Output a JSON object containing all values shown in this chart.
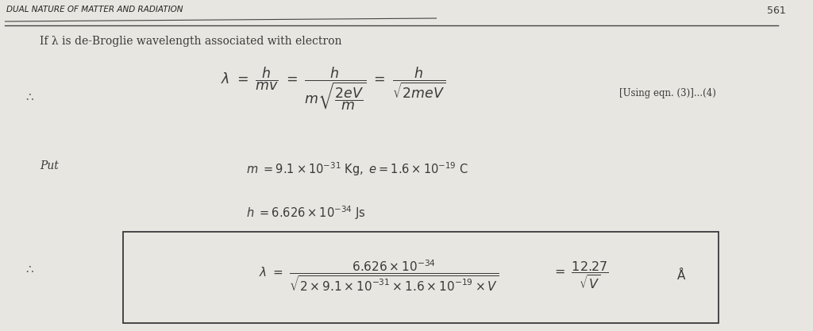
{
  "bg_color": "#e8e6e0",
  "page_number": "561",
  "header_text": "DUAL NATURE OF MATTER AND RADIATION",
  "intro_text": "If λ is de-Broglie wavelength associated with electron",
  "using_eqn": "[Using eqn. (3)]...(4)",
  "put_text": "Put",
  "text_color": "#3a3a3a",
  "header_color": "#222222",
  "box_color": "#3a3a3a",
  "line_color": "#444444",
  "therefore_color": "#555555"
}
